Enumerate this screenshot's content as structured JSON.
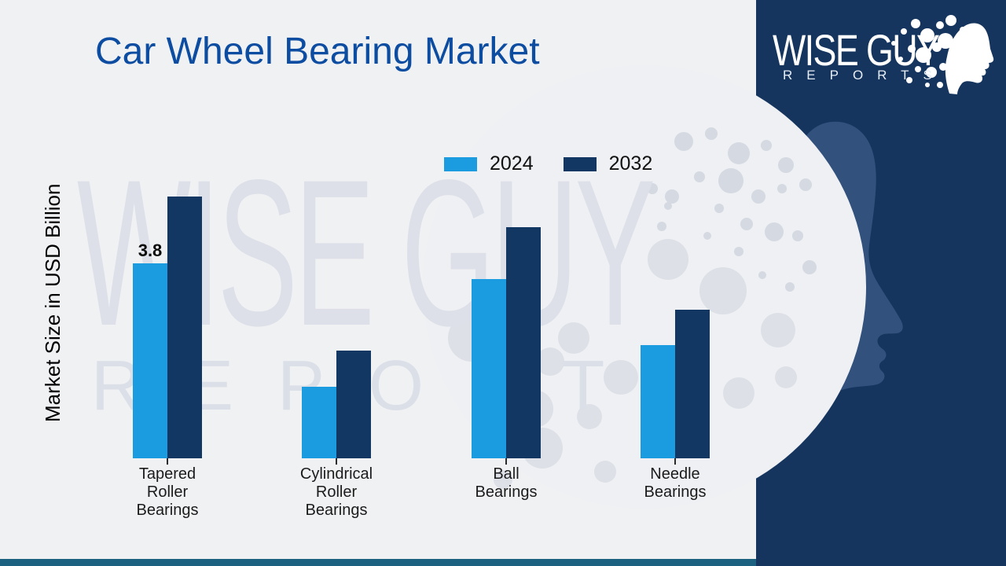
{
  "page": {
    "background_color": "#f0f1f3",
    "bottom_bar_color": "#1d6180",
    "corner_panel_color": "#15355e"
  },
  "header": {
    "title": "Car Wheel Bearing Market",
    "title_color": "#0d4da1"
  },
  "brand_logo": {
    "title": "WISE GUY",
    "subtitle": "REPORTS",
    "text_color": "#ffffff"
  },
  "watermark": {
    "title": "WISE GUY",
    "subtitle": "REPORTS"
  },
  "chart_data": {
    "type": "bar",
    "title": "Car Wheel Bearing Market",
    "xlabel": "",
    "ylabel": "Market Size in USD Billion",
    "categories": [
      "Tapered Roller Bearings",
      "Cylindrical Roller Bearings",
      "Ball Bearings",
      "Needle Bearings"
    ],
    "series": [
      {
        "name": "2024",
        "color": "#1b9ce0",
        "values": [
          3.8,
          1.4,
          3.5,
          2.2
        ]
      },
      {
        "name": "2032",
        "color": "#133763",
        "values": [
          5.1,
          2.1,
          4.5,
          2.9
        ]
      }
    ],
    "ylim": [
      0,
      5.5
    ],
    "grid": false,
    "legend_position": "top-center",
    "annotations": [
      {
        "text": "3.8",
        "series_index": 0,
        "category_index": 0
      }
    ]
  }
}
